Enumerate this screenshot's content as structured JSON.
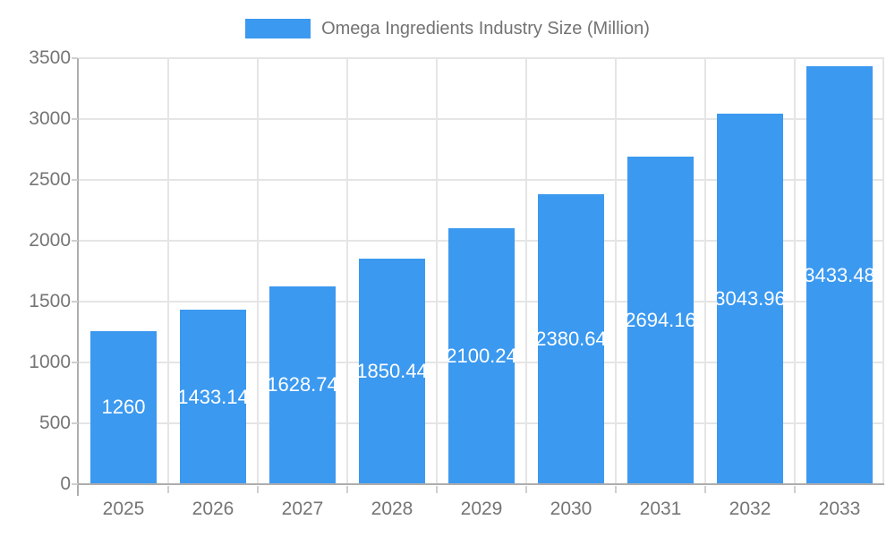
{
  "legend": {
    "label": "Omega Ingredients Industry Size (Million)"
  },
  "chart_data": {
    "type": "bar",
    "title": "Omega Ingredients Industry Size (Million)",
    "xlabel": "",
    "ylabel": "",
    "categories": [
      "2025",
      "2026",
      "2027",
      "2028",
      "2029",
      "2030",
      "2031",
      "2032",
      "2033"
    ],
    "series": [
      {
        "name": "Omega Ingredients Industry Size (Million)",
        "values": [
          1260,
          1433.14,
          1628.74,
          1850.44,
          2100.24,
          2380.64,
          2694.16,
          3043.96,
          3433.48
        ]
      }
    ],
    "value_labels": [
      "1260",
      "1433.14",
      "1628.74",
      "1850.44",
      "2100.24",
      "2380.64",
      "2694.16",
      "3043.96",
      "3433.48"
    ],
    "ylim": [
      0,
      3500
    ],
    "yticks": [
      0,
      500,
      1000,
      1500,
      2000,
      2500,
      3000,
      3500
    ],
    "grid": true,
    "legend_position": "top",
    "colors": {
      "bar": "#3B99F0",
      "grid": "#E5E5E5",
      "axis": "#ADADAD",
      "tick": "#CFCFCF",
      "tick_text": "#757575",
      "value_text": "#FFFFFF",
      "legend_text": "#737373",
      "background": "#FFFFFF"
    }
  }
}
